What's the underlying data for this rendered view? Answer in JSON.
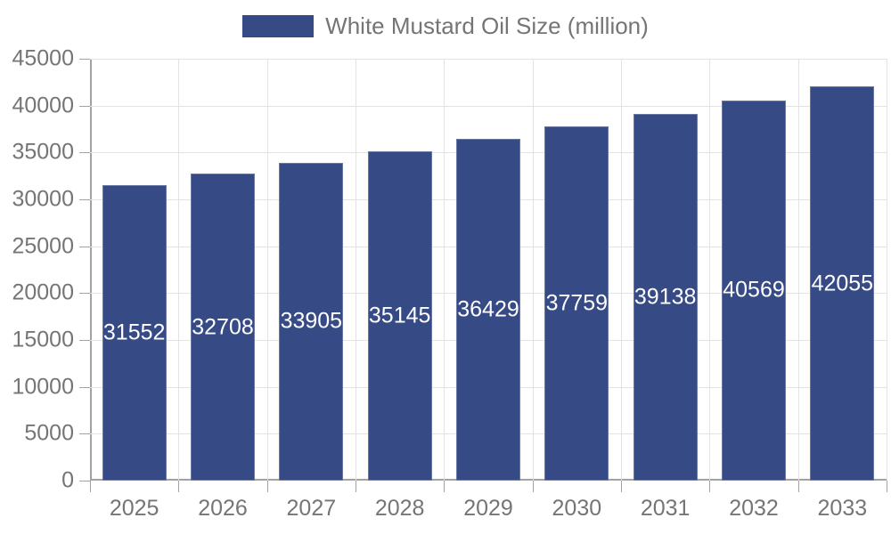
{
  "chart_data": {
    "type": "bar",
    "title": "White Mustard Oil Size (million)",
    "legend": {
      "label": "White Mustard Oil Size (million)",
      "position": "top-center"
    },
    "categories": [
      "2025",
      "2026",
      "2027",
      "2028",
      "2029",
      "2030",
      "2031",
      "2032",
      "2033"
    ],
    "values": [
      31552,
      32708,
      33905,
      35145,
      36429,
      37759,
      39138,
      40569,
      42055
    ],
    "value_labels_inside_bars": true,
    "xlabel": "",
    "ylabel": "",
    "ylim": [
      0,
      45000
    ],
    "ytick_interval": 5000,
    "ytick_labels": [
      "0",
      "5000",
      "10000",
      "15000",
      "20000",
      "25000",
      "30000",
      "35000",
      "40000",
      "45000"
    ],
    "grid": true,
    "legend_position": "top",
    "colors": {
      "bar": "#364a85",
      "bar_label": "#ffffff",
      "axis_text": "#757575",
      "grid_line": "#e3e3e3",
      "axis_line": "#a2a2a2"
    }
  }
}
